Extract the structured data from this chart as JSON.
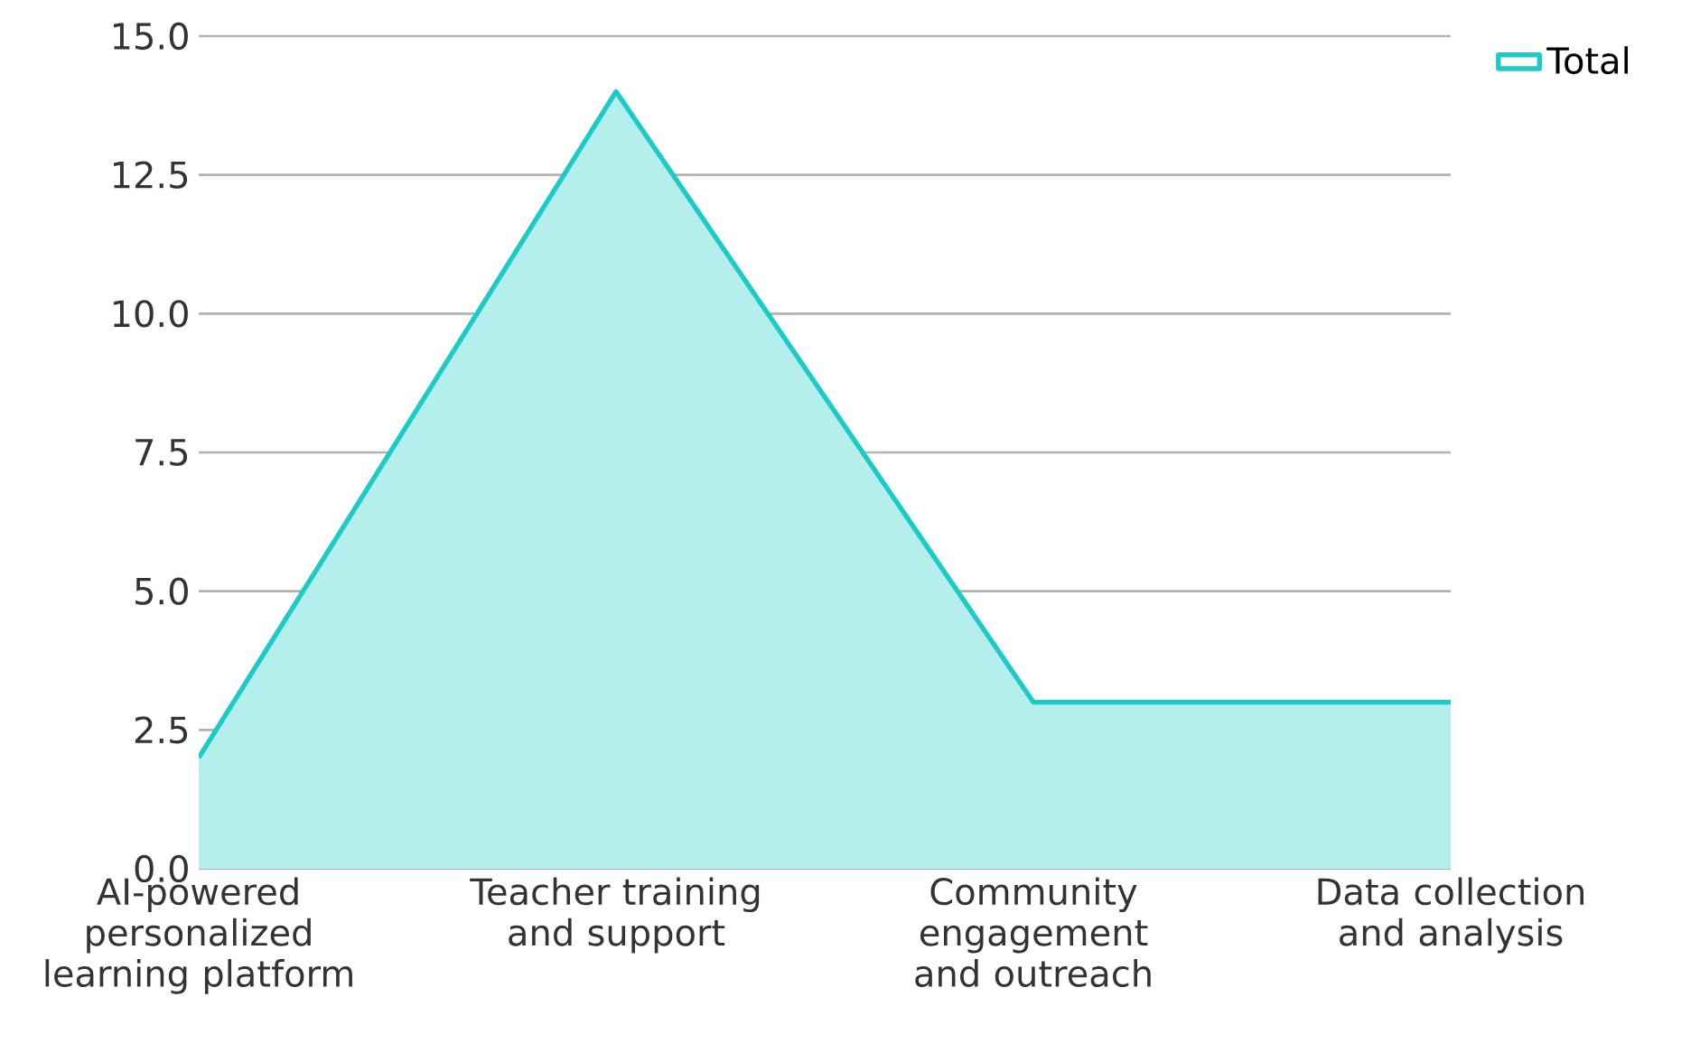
{
  "chart_data": {
    "type": "area",
    "categories": [
      "AI-powered personalized learning platform",
      "Teacher training and support",
      "Community engagement and outreach",
      "Data collection and analysis"
    ],
    "series": [
      {
        "name": "Total",
        "color": "#1ccbc8",
        "values": [
          2,
          14,
          3,
          3
        ]
      }
    ],
    "ylim": [
      0,
      15
    ],
    "yticks": [
      {
        "value": 0,
        "label": "0.0"
      },
      {
        "value": 2.5,
        "label": "2.5"
      },
      {
        "value": 5,
        "label": "5.0"
      },
      {
        "value": 7.5,
        "label": "7.5"
      },
      {
        "value": 10,
        "label": "10.0"
      },
      {
        "value": 12.5,
        "label": "12.5"
      },
      {
        "value": 15,
        "label": "15.0"
      }
    ],
    "grid": "y",
    "legend": "top right"
  }
}
